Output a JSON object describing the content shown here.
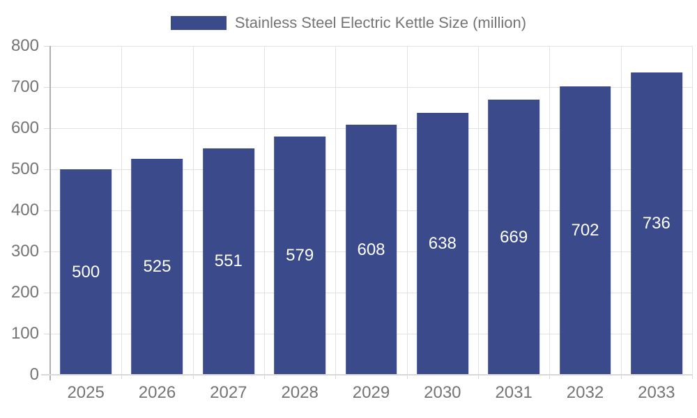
{
  "chart_data": {
    "type": "bar",
    "title": "Stainless Steel Electric Kettle Size (million)",
    "legend": {
      "label": "Stainless Steel Electric Kettle Size (million)",
      "position": "top-center"
    },
    "categories": [
      "2025",
      "2026",
      "2027",
      "2028",
      "2029",
      "2030",
      "2031",
      "2032",
      "2033"
    ],
    "series": [
      {
        "name": "Stainless Steel Electric Kettle Size (million)",
        "values": [
          500,
          525,
          551,
          579,
          608,
          638,
          669,
          702,
          736
        ]
      }
    ],
    "xlabel": "",
    "ylabel": "",
    "ylim": [
      0,
      800
    ],
    "ytick_step": 100,
    "yticks": [
      0,
      100,
      200,
      300,
      400,
      500,
      600,
      700,
      800
    ],
    "grid": true,
    "bar_width_ratio": 0.72,
    "value_labels": "inside-center",
    "colors": {
      "bar": "#3A4A8A",
      "bar_label_text": "#FFFFFF",
      "axis_text": "#747474",
      "grid_line": "#E2E2E2",
      "axis_line": "#B0B0B0",
      "axis_bottom_line": "#D9D9D9",
      "background": "#FFFFFF"
    }
  }
}
